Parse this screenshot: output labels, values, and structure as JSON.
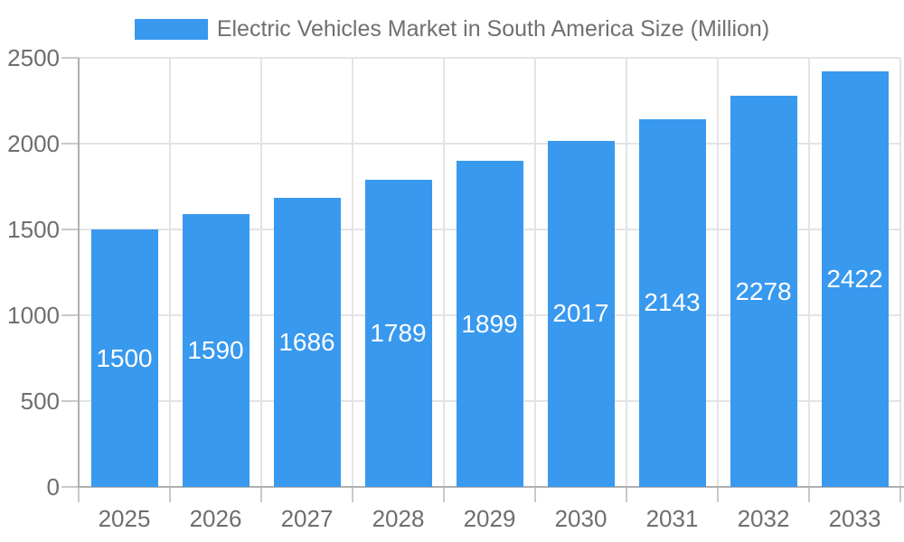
{
  "legend": {
    "label": "Electric Vehicles Market in South America Size (Million)"
  },
  "colors": {
    "bar": "#3899EE",
    "grid": "#E4E4E4",
    "axis": "#B0B0B0",
    "tick": "#C9C9C9",
    "tick_text": "#6E6E6E",
    "legend_text": "#707070",
    "value_label": "#FFFFFF",
    "background": "#FFFFFF"
  },
  "chart_data": {
    "type": "bar",
    "title": "Electric Vehicles Market in South America Size (Million)",
    "categories": [
      "2025",
      "2026",
      "2027",
      "2028",
      "2029",
      "2030",
      "2031",
      "2032",
      "2033"
    ],
    "values": [
      1500,
      1590,
      1686,
      1789,
      1899,
      2017,
      2143,
      2278,
      2422
    ],
    "xlabel": "",
    "ylabel": "",
    "ylim": [
      0,
      2500
    ],
    "yticks": [
      0,
      500,
      1000,
      1500,
      2000,
      2500
    ],
    "grid": true,
    "legend_position": "top",
    "value_label_style": "white, centered inside bar"
  }
}
